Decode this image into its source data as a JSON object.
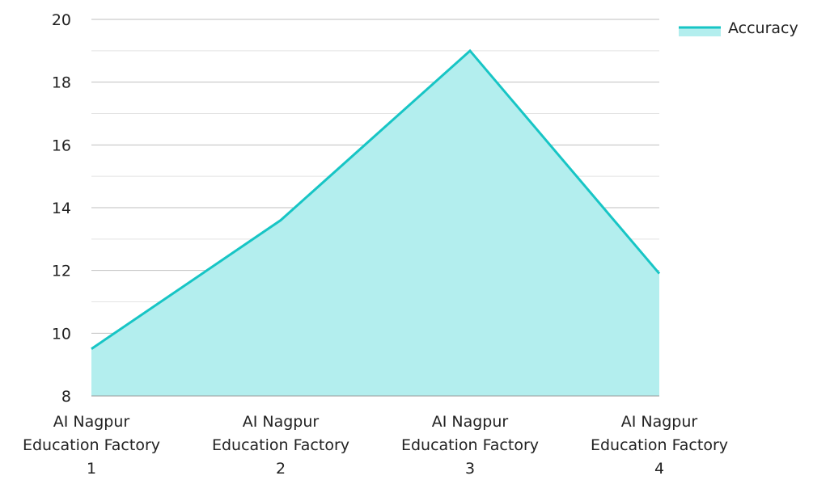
{
  "chart_data": {
    "type": "area",
    "title": "",
    "xlabel": "",
    "ylabel": "",
    "categories": [
      [
        "AI Nagpur",
        "Education Factory",
        "1"
      ],
      [
        "AI Nagpur",
        "Education Factory",
        "2"
      ],
      [
        "AI Nagpur",
        "Education Factory",
        "3"
      ],
      [
        "AI Nagpur",
        "Education Factory",
        "4"
      ]
    ],
    "series": [
      {
        "name": "Accuracy",
        "values": [
          9.5,
          13.6,
          19.0,
          11.9
        ],
        "line_color": "#17C5C5",
        "fill_color": "#B3EEEE"
      }
    ],
    "ylim": [
      8,
      20
    ],
    "y_ticks": [
      "8",
      "10",
      "12",
      "14",
      "16",
      "18",
      "20"
    ],
    "grid": true,
    "legend_position": "top-right"
  }
}
